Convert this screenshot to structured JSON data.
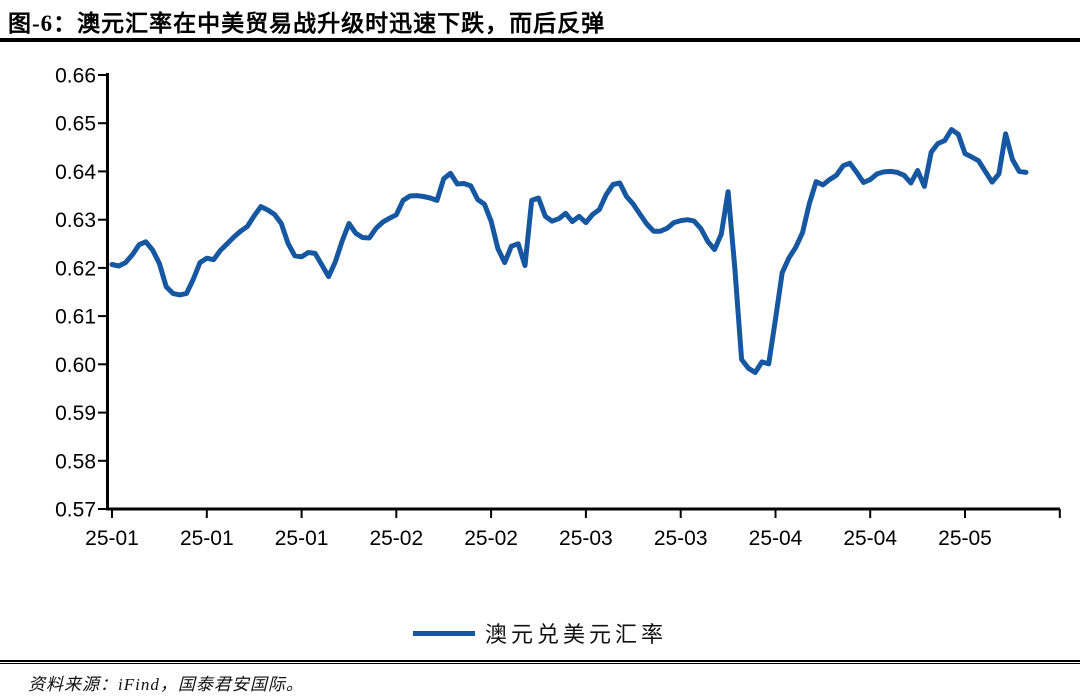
{
  "title": "图-6：澳元汇率在中美贸易战升级时迅速下跌，而后反弹",
  "source": "资料来源：iFind，国泰君安国际。",
  "chart_data": {
    "type": "line",
    "title": "澳元汇率在中美贸易战升级时迅速下跌，而后反弹",
    "xlabel": "",
    "ylabel": "",
    "ylim": [
      0.57,
      0.66
    ],
    "yticks": [
      "0.66",
      "0.65",
      "0.64",
      "0.63",
      "0.62",
      "0.61",
      "0.60",
      "0.59",
      "0.58",
      "0.57"
    ],
    "xtick_labels": [
      "25-01",
      "25-01",
      "25-01",
      "25-02",
      "25-02",
      "25-03",
      "25-03",
      "25-04",
      "25-04",
      "25-05"
    ],
    "xtick_interval_days": 14,
    "grid": false,
    "legend_position": "bottom",
    "series": [
      {
        "name": "澳元兑美元汇率",
        "color": "#1557A0",
        "start_date": "2025-01-01",
        "end_date": "2025-05-16",
        "frequency": "daily",
        "values": [
          0.6207,
          0.6204,
          0.6211,
          0.6227,
          0.6248,
          0.6254,
          0.6237,
          0.6209,
          0.6161,
          0.6147,
          0.6144,
          0.6147,
          0.6176,
          0.6211,
          0.622,
          0.6217,
          0.6236,
          0.625,
          0.6264,
          0.6276,
          0.6286,
          0.6308,
          0.6327,
          0.632,
          0.6311,
          0.6292,
          0.6251,
          0.6225,
          0.6223,
          0.6232,
          0.623,
          0.6206,
          0.6182,
          0.6213,
          0.6256,
          0.6292,
          0.6272,
          0.6263,
          0.6262,
          0.6282,
          0.6295,
          0.6303,
          0.631,
          0.634,
          0.6349,
          0.635,
          0.6348,
          0.6345,
          0.634,
          0.6385,
          0.6396,
          0.6374,
          0.6375,
          0.637,
          0.6342,
          0.6332,
          0.6297,
          0.624,
          0.6211,
          0.6245,
          0.625,
          0.6205,
          0.634,
          0.6345,
          0.6307,
          0.6297,
          0.6302,
          0.6313,
          0.6296,
          0.6307,
          0.6294,
          0.6311,
          0.6321,
          0.6352,
          0.6373,
          0.6376,
          0.6348,
          0.6332,
          0.6311,
          0.6291,
          0.6276,
          0.6276,
          0.6282,
          0.6294,
          0.6298,
          0.63,
          0.6297,
          0.6281,
          0.6255,
          0.6238,
          0.627,
          0.6358,
          0.62,
          0.601,
          0.5992,
          0.5983,
          0.6005,
          0.6001,
          0.6094,
          0.619,
          0.6221,
          0.6243,
          0.6273,
          0.6333,
          0.6379,
          0.6372,
          0.6383,
          0.6392,
          0.6412,
          0.6417,
          0.6398,
          0.6377,
          0.6383,
          0.6395,
          0.6399,
          0.64,
          0.6398,
          0.6392,
          0.6376,
          0.6402,
          0.6369,
          0.644,
          0.6458,
          0.6464,
          0.6487,
          0.6477,
          0.6437,
          0.643,
          0.6422,
          0.64,
          0.6378,
          0.6395,
          0.6478,
          0.6425,
          0.64,
          0.6398
        ]
      }
    ]
  }
}
